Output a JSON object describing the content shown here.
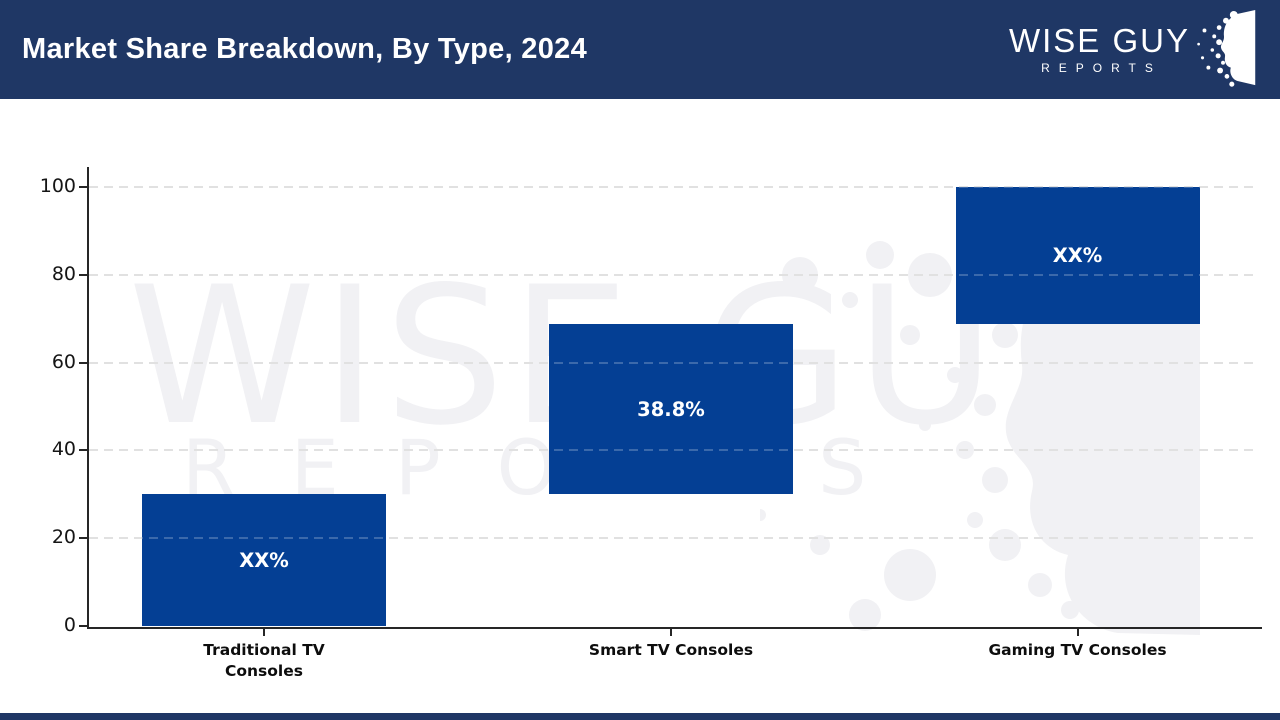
{
  "header": {
    "title": "Market Share Breakdown, By Type, 2024",
    "logo": {
      "line1": "WISE GUY",
      "line2": "REPORTS"
    }
  },
  "watermark": {
    "line1": "WISE GUY",
    "line2": "REPORTS"
  },
  "chart_data": {
    "type": "bar",
    "subtype": "floating-waterfall",
    "title": "Market Share Breakdown, By Type, 2024",
    "categories": [
      "Traditional TV Consoles",
      "Smart TV Consoles",
      "Gaming TV Consoles"
    ],
    "series": [
      {
        "name": "Market Share",
        "segments": [
          {
            "category": "Traditional TV Consoles",
            "start": 0,
            "end": 30,
            "label": "XX%"
          },
          {
            "category": "Smart TV Consoles",
            "start": 30,
            "end": 68.8,
            "label": "38.8%"
          },
          {
            "category": "Gaming TV Consoles",
            "start": 68.8,
            "end": 100,
            "label": "XX%"
          }
        ]
      }
    ],
    "xlabel": "",
    "ylabel": "",
    "ylim": [
      0,
      100
    ],
    "yticks": [
      0,
      20,
      40,
      60,
      80,
      100
    ],
    "grid": "horizontal-dashed",
    "legend": "none",
    "colors": {
      "bar": "#043f94",
      "bar_label": "#ffffff",
      "header_bg": "#1f3765",
      "axis": "#262626",
      "gridline": "#d9d9d9",
      "watermark": "#f1f1f4"
    }
  }
}
